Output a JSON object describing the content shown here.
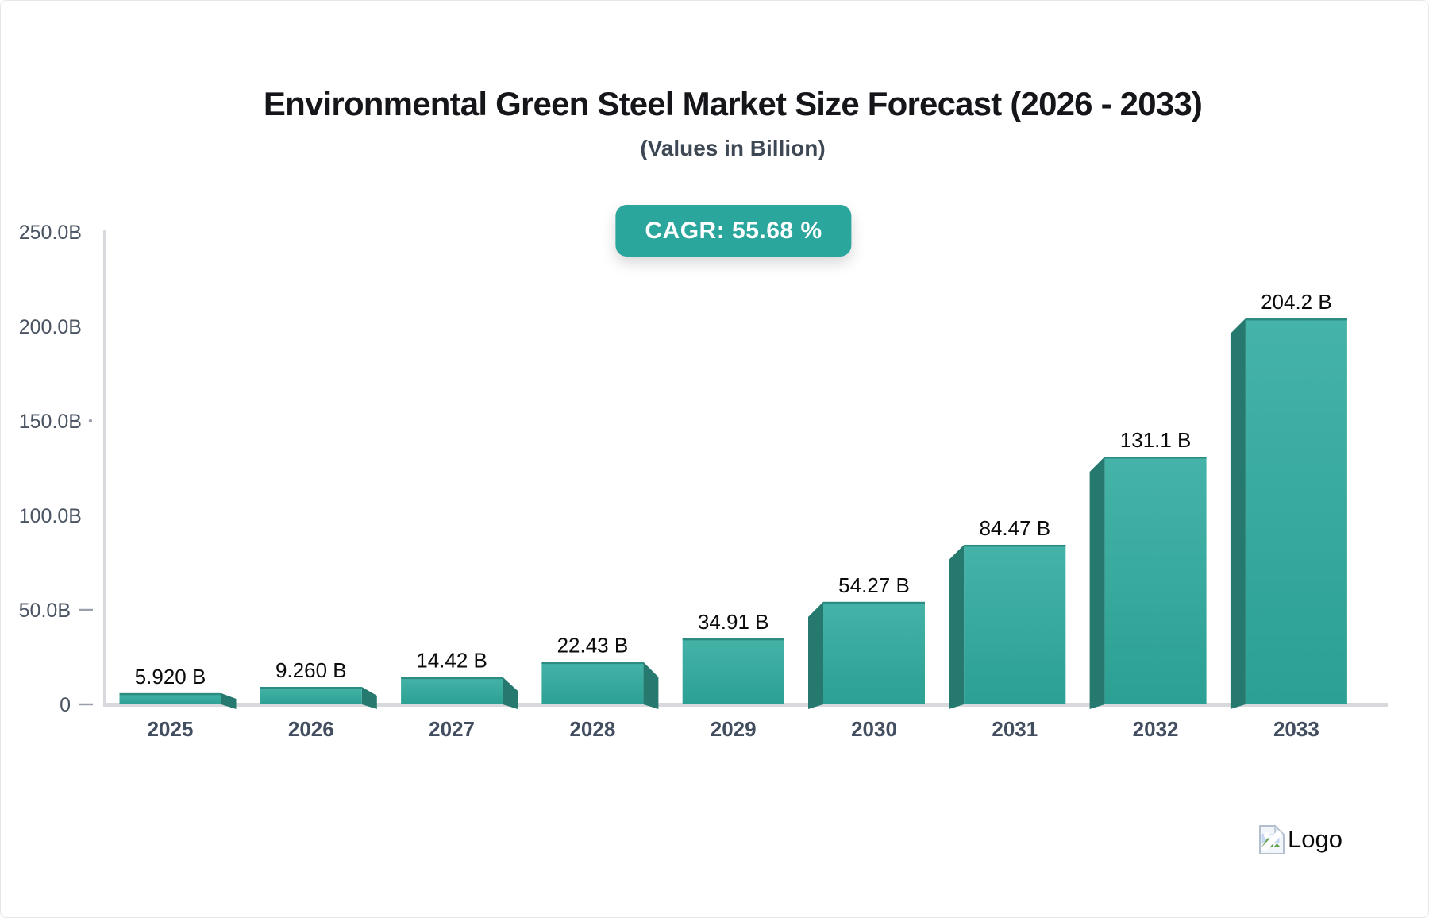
{
  "header": {
    "title": "Environmental Green Steel Market Size Forecast (2026 - 2033)",
    "subtitle": "(Values in Billion)"
  },
  "badge": {
    "label": "CAGR: 55.68 %",
    "bg_color": "#2AA69D",
    "text_color": "#FFFFFF"
  },
  "chart_data": {
    "type": "bar",
    "title": "Environmental Green Steel Market Size Forecast (2026 - 2033)",
    "subtitle": "(Values in Billion)",
    "cagr": "55.68 %",
    "categories": [
      "2025",
      "2026",
      "2027",
      "2028",
      "2029",
      "2030",
      "2031",
      "2032",
      "2033"
    ],
    "values": [
      5.92,
      9.26,
      14.42,
      22.43,
      34.91,
      54.27,
      84.47,
      131.1,
      204.2
    ],
    "value_labels": [
      "5.920 B",
      "9.260 B",
      "14.42 B",
      "22.43 B",
      "34.91 B",
      "54.27 B",
      "84.47 B",
      "131.1 B",
      "204.2 B"
    ],
    "ylim": [
      0,
      250
    ],
    "yticks": [
      {
        "value": 250,
        "label": "250.0B",
        "mark": null
      },
      {
        "value": 200,
        "label": "200.0B",
        "mark": null
      },
      {
        "value": 150,
        "label": "150.0B",
        "mark": "dot"
      },
      {
        "value": 100,
        "label": "100.0B",
        "mark": null
      },
      {
        "value": 50,
        "label": "50.0B",
        "mark": "dash"
      },
      {
        "value": 0,
        "label": "0",
        "mark": "dash"
      }
    ],
    "grid": false,
    "legend": false,
    "style": "pseudo-3d-bars-facing-center",
    "colors": {
      "bar_face_top": "#45B3A8",
      "bar_face_bottom": "#2BA093",
      "bar_side": "#26796F",
      "bar_top_edge": "#2C8C82",
      "axis": "#D8D9DD",
      "tick_mark": "#9AA0AB",
      "ytick_label": "#4A5462",
      "xtick_label": "#424D5F",
      "value_label": "#0B0B0C"
    }
  },
  "footer": {
    "logo_text": "Logo"
  }
}
